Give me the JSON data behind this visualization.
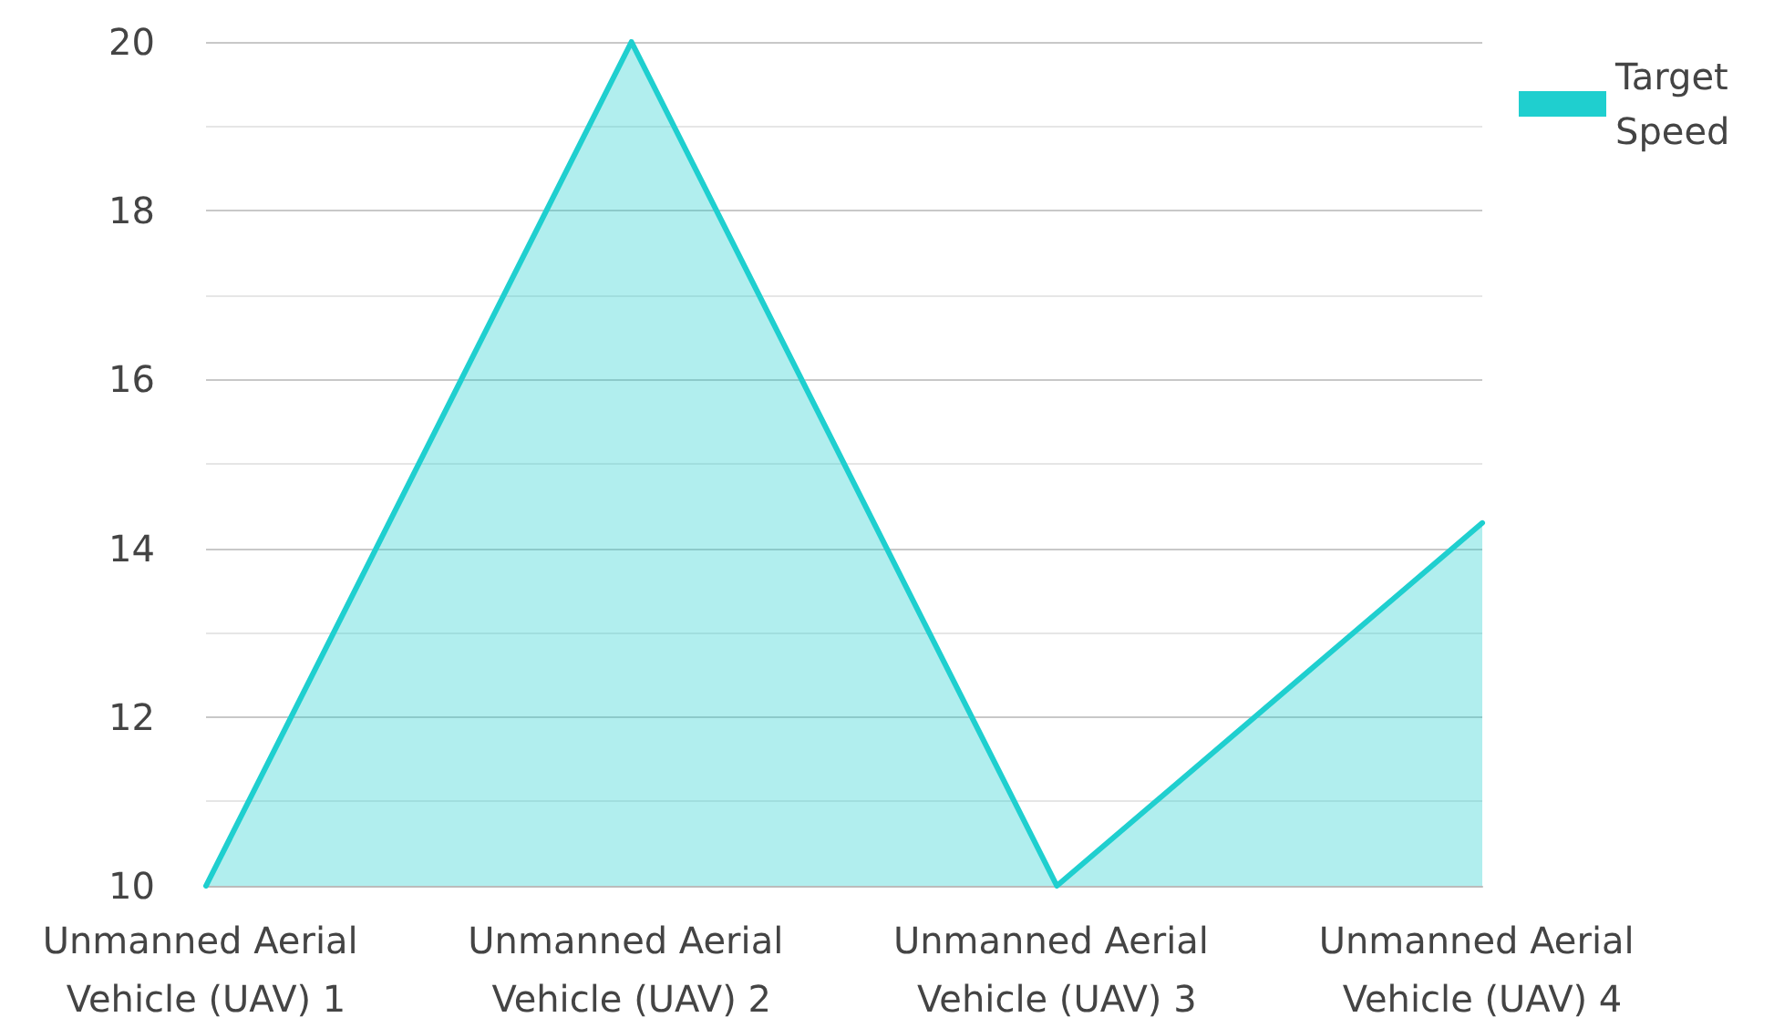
{
  "chart_data": {
    "type": "area",
    "categories": [
      "Unmanned Aerial Vehicle (UAV) 1",
      "Unmanned Aerial Vehicle (UAV) 2",
      "Unmanned Aerial Vehicle (UAV) 3",
      "Unmanned Aerial Vehicle (UAV) 4"
    ],
    "series": [
      {
        "name": "Target Speed",
        "color": "#1fcfcf",
        "values": [
          10,
          20,
          10,
          14.3
        ]
      }
    ],
    "ylim": [
      10,
      20
    ],
    "yticks": [
      10,
      12,
      14,
      16,
      18,
      20
    ],
    "grid": "y",
    "legend": "top right",
    "marker": "none"
  }
}
